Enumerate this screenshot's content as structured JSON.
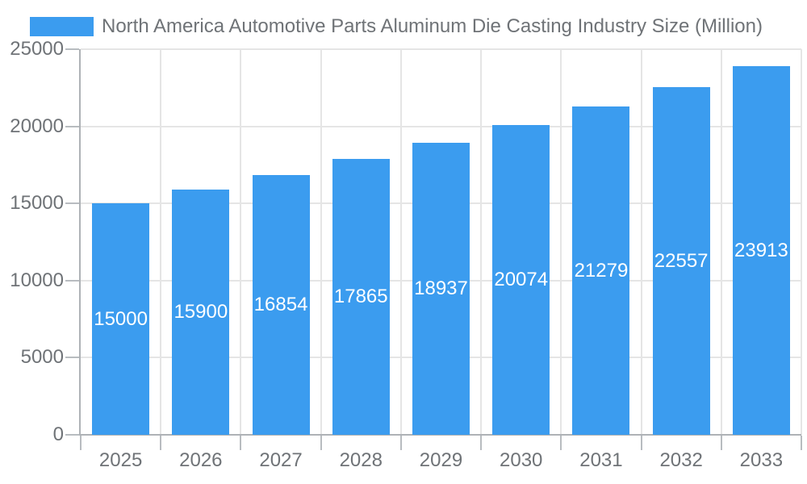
{
  "chart_data": {
    "type": "bar",
    "title": "North America Automotive Parts Aluminum Die Casting Industry Size (Million)",
    "categories": [
      "2025",
      "2026",
      "2027",
      "2028",
      "2029",
      "2030",
      "2031",
      "2032",
      "2033"
    ],
    "values": [
      15000,
      15900,
      16854,
      17865,
      18937,
      20074,
      21279,
      22557,
      23913
    ],
    "xlabel": "",
    "ylabel": "",
    "ylim": [
      0,
      25000
    ],
    "y_ticks": [
      0,
      5000,
      10000,
      15000,
      20000,
      25000
    ],
    "grid": true,
    "legend_position": "top-left",
    "colors": {
      "bar": "#3b9cef",
      "bar_label": "#ffffff",
      "axis_text": "#6f7377",
      "gridline": "#e5e5e5",
      "axis_line": "#aeb2b6"
    }
  }
}
